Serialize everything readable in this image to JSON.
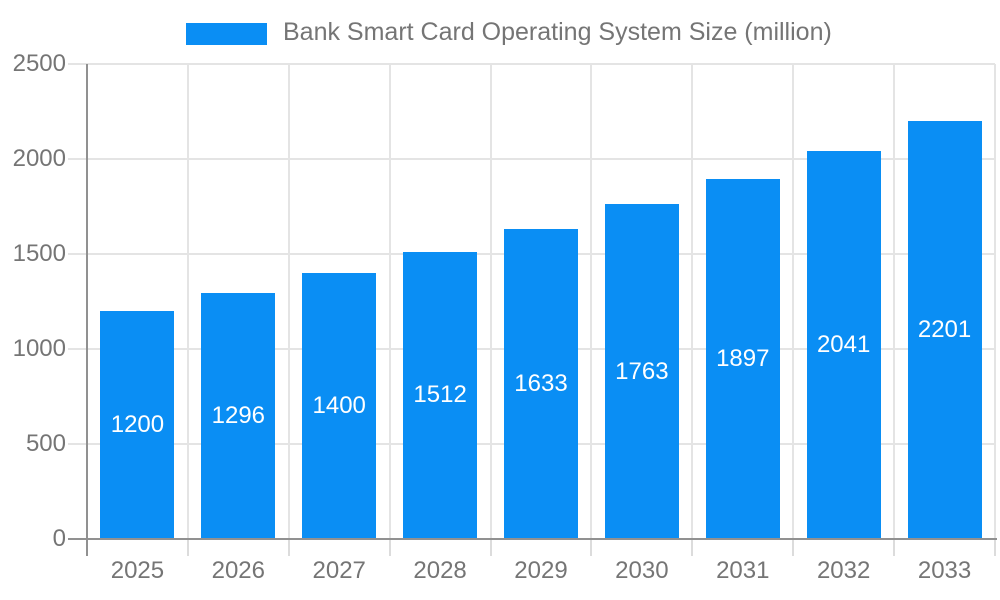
{
  "colors": {
    "background": "#ffffff",
    "bar": "#0A8EF4",
    "grid": "#e4e4e4",
    "tick": "#dcdcdc",
    "axis": "#919191",
    "tick_label": "#757575",
    "legend_text": "#757575",
    "value_label": "#ffffff"
  },
  "legend": {
    "label": "Bank Smart Card Operating System Size (million)",
    "swatch_icon": "blue-rect-swatch"
  },
  "chart_data": {
    "type": "bar",
    "title": "Bank Smart Card Operating System Size (million)",
    "categories": [
      "2025",
      "2026",
      "2027",
      "2028",
      "2029",
      "2030",
      "2031",
      "2032",
      "2033"
    ],
    "series": [
      {
        "name": "Bank Smart Card Operating System Size (million)",
        "values": [
          1200,
          1296,
          1400,
          1512,
          1633,
          1763,
          1897,
          2041,
          2201
        ]
      }
    ],
    "value_labels_shown": true,
    "xlabel": "",
    "ylabel": "",
    "ylim": [
      0,
      2500
    ],
    "yticks": [
      0,
      500,
      1000,
      1500,
      2000,
      2500
    ],
    "grid": true,
    "legend_position": "top-center"
  }
}
